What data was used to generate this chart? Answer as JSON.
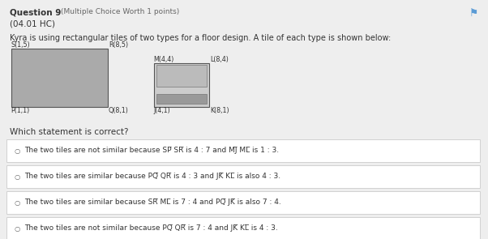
{
  "bg_color": "#eeeeee",
  "title_bold": "Question 9",
  "title_normal": "(Multiple Choice Worth 1 points)",
  "subtitle": "(04.01 HC)",
  "description": "Kyra is using rectangular tiles of two types for a floor design. A tile of each type is shown below:",
  "question_label": "Which statement is correct?",
  "rect1_label_tl": "S(1,5)",
  "rect1_label_tr": "R(8,5)",
  "rect1_label_bl": "P(1,1)",
  "rect1_label_br": "Q(8,1)",
  "rect1_color": "#aaaaaa",
  "rect2_label_tl": "M(4,4)",
  "rect2_label_tr": "L(8,4)",
  "rect2_label_bl": "J(4,1)",
  "rect2_label_br": "K(8,1)",
  "rect2_color": "#cccccc",
  "rect2_inner1_color": "#bbbbbb",
  "rect2_inner2_color": "#999999",
  "choices": [
    "The two tiles are not similar because SP̅ SR̅ is 4 : 7 and MJ̅ ML̅ is 1 : 3.",
    "The two tiles are similar because PQ̅ QR̅ is 4 : 3 and JK̅ KL̅ is also 4 : 3.",
    "The two tiles are similar because SR̅ ML̅ is 7 : 4 and PQ̅ JK̅ is also 7 : 4.",
    "The two tiles are not similar because PQ̅ QR̅ is 7 : 4 and JK̅ KL̅ is 4 : 3."
  ],
  "flag_color": "#5b9bd5",
  "choice_bg": "#ffffff",
  "choice_border": "#cccccc",
  "text_color": "#333333",
  "light_text": "#666666"
}
